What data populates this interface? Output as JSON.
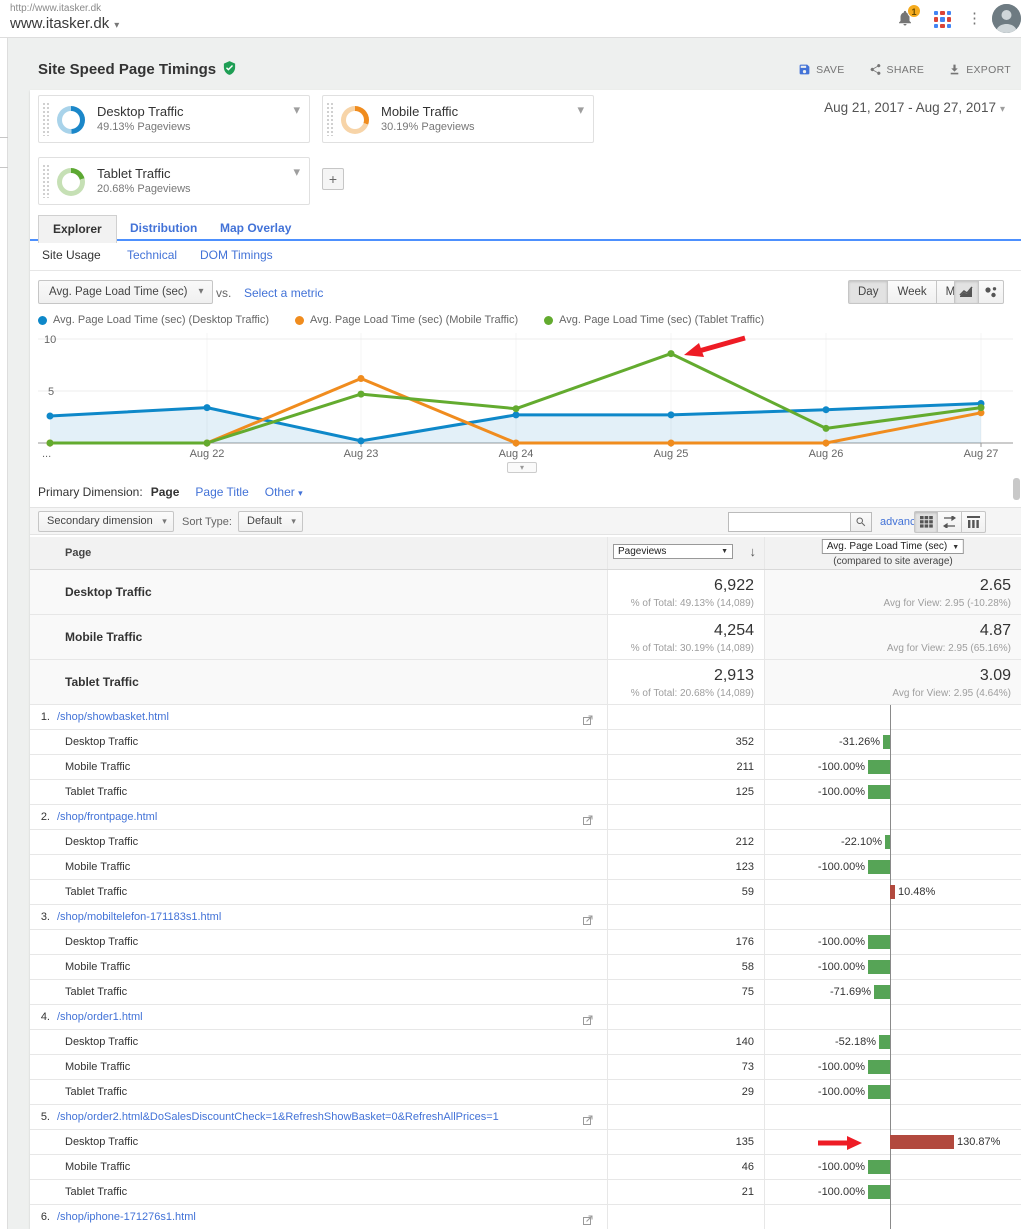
{
  "icons": {
    "caret_down": "▾",
    "select_arrow": "▼",
    "sort_desc": "↓",
    "overflow_menu": "⋮"
  },
  "topbar": {
    "property_url": "http://www.itasker.dk",
    "account_name": "www.itasker.dk",
    "notification_count": "1"
  },
  "report": {
    "title": "Site Speed Page Timings",
    "save_label": "SAVE",
    "share_label": "SHARE",
    "export_label": "EXPORT",
    "date_range": "Aug 21, 2017 - Aug 27, 2017"
  },
  "segments": {
    "cards": [
      {
        "name": "Desktop Traffic",
        "detail": "49.13% Pageviews",
        "pct": 49.13,
        "color": "#1b87c9",
        "light": "#a9d3ea"
      },
      {
        "name": "Mobile Traffic",
        "detail": "30.19% Pageviews",
        "pct": 30.19,
        "color": "#f08c1e",
        "light": "#f7d4a8"
      },
      {
        "name": "Tablet Traffic",
        "detail": "20.68% Pageviews",
        "pct": 20.68,
        "color": "#5ca832",
        "light": "#c6e0b5"
      }
    ],
    "add_label": "+"
  },
  "tabs": [
    {
      "label": "Explorer",
      "active": true
    },
    {
      "label": "Distribution",
      "active": false
    },
    {
      "label": "Map Overlay",
      "active": false
    }
  ],
  "subtabs": [
    {
      "label": "Site Usage",
      "active": true
    },
    {
      "label": "Technical",
      "active": false
    },
    {
      "label": "DOM Timings",
      "active": false
    }
  ],
  "metric_bar": {
    "metric": "Avg. Page Load Time (sec)",
    "vs": "vs.",
    "select_metric": "Select a metric",
    "granularity": [
      {
        "label": "Day",
        "active": true
      },
      {
        "label": "Week",
        "active": false
      },
      {
        "label": "Month",
        "active": false
      }
    ]
  },
  "chart_data": {
    "type": "line",
    "x": [
      "Aug 21",
      "Aug 22",
      "Aug 23",
      "Aug 24",
      "Aug 25",
      "Aug 26",
      "Aug 27"
    ],
    "x_tick_labels": [
      "...",
      "Aug 22",
      "Aug 23",
      "Aug 24",
      "Aug 25",
      "Aug 26",
      "Aug 27"
    ],
    "ylim": [
      0,
      10
    ],
    "yticks": [
      5,
      10
    ],
    "grid": true,
    "series": [
      {
        "name": "Avg. Page Load Time (sec) (Desktop Traffic)",
        "color": "#0e88c9",
        "area_fill": true,
        "values": [
          2.6,
          3.4,
          0.2,
          2.7,
          2.7,
          3.2,
          3.8
        ]
      },
      {
        "name": "Avg. Page Load Time (sec) (Mobile Traffic)",
        "color": "#f08c1e",
        "area_fill": false,
        "values": [
          0,
          0,
          6.2,
          0,
          0,
          0,
          2.9
        ]
      },
      {
        "name": "Avg. Page Load Time (sec) (Tablet Traffic)",
        "color": "#63ab2f",
        "area_fill": false,
        "values": [
          0,
          0,
          4.7,
          3.3,
          8.6,
          1.4,
          3.4
        ]
      }
    ],
    "annotations": [
      {
        "type": "red-arrow",
        "target": "Tablet Traffic peak on Aug 25"
      },
      {
        "type": "red-arrow",
        "target": "Desktop Traffic 130.87% bar in row 5"
      }
    ]
  },
  "primary_dimension": {
    "label": "Primary Dimension:",
    "selected": "Page",
    "options": [
      "Page",
      "Page Title",
      "Other"
    ]
  },
  "toolbar": {
    "secondary_dimension": "Secondary dimension",
    "sort_type_label": "Sort Type:",
    "sort_type": "Default",
    "advanced": "advanced",
    "search_value": ""
  },
  "table": {
    "col_page": "Page",
    "col_pageviews": "Pageviews",
    "col_metric": "Avg. Page Load Time (sec)",
    "col_metric_note": "(compared to site average)",
    "summary": [
      {
        "label": "Desktop Traffic",
        "pageviews": "6,922",
        "pv_note": "% of Total: 49.13% (14,089)",
        "metric": "2.65",
        "metric_note": "Avg for View: 2.95 (-10.28%)"
      },
      {
        "label": "Mobile Traffic",
        "pageviews": "4,254",
        "pv_note": "% of Total: 30.19% (14,089)",
        "metric": "4.87",
        "metric_note": "Avg for View: 2.95 (65.16%)"
      },
      {
        "label": "Tablet Traffic",
        "pageviews": "2,913",
        "pv_note": "% of Total: 20.68% (14,089)",
        "metric": "3.09",
        "metric_note": "Avg for View: 2.95 (4.64%)"
      }
    ],
    "rows": [
      {
        "index": "1.",
        "url": "/shop/showbasket.html",
        "details": [
          {
            "label": "Desktop Traffic",
            "pageviews": "352",
            "pct": -31.26,
            "pct_label": "-31.26%"
          },
          {
            "label": "Mobile Traffic",
            "pageviews": "211",
            "pct": -100,
            "pct_label": "-100.00%"
          },
          {
            "label": "Tablet Traffic",
            "pageviews": "125",
            "pct": -100,
            "pct_label": "-100.00%"
          }
        ]
      },
      {
        "index": "2.",
        "url": "/shop/frontpage.html",
        "details": [
          {
            "label": "Desktop Traffic",
            "pageviews": "212",
            "pct": -22.1,
            "pct_label": "-22.10%"
          },
          {
            "label": "Mobile Traffic",
            "pageviews": "123",
            "pct": -100,
            "pct_label": "-100.00%"
          },
          {
            "label": "Tablet Traffic",
            "pageviews": "59",
            "pct": 10.48,
            "pct_label": "10.48%"
          }
        ]
      },
      {
        "index": "3.",
        "url": "/shop/mobiltelefon-171183s1.html",
        "details": [
          {
            "label": "Desktop Traffic",
            "pageviews": "176",
            "pct": -100,
            "pct_label": "-100.00%"
          },
          {
            "label": "Mobile Traffic",
            "pageviews": "58",
            "pct": -100,
            "pct_label": "-100.00%"
          },
          {
            "label": "Tablet Traffic",
            "pageviews": "75",
            "pct": -71.69,
            "pct_label": "-71.69%"
          }
        ]
      },
      {
        "index": "4.",
        "url": "/shop/order1.html",
        "details": [
          {
            "label": "Desktop Traffic",
            "pageviews": "140",
            "pct": -52.18,
            "pct_label": "-52.18%"
          },
          {
            "label": "Mobile Traffic",
            "pageviews": "73",
            "pct": -100,
            "pct_label": "-100.00%"
          },
          {
            "label": "Tablet Traffic",
            "pageviews": "29",
            "pct": -100,
            "pct_label": "-100.00%"
          }
        ]
      },
      {
        "index": "5.",
        "url": "/shop/order2.html&DoSalesDiscountCheck=1&RefreshShowBasket=0&RefreshAllPrices=1",
        "details": [
          {
            "label": "Desktop Traffic",
            "pageviews": "135",
            "pct": 130.87,
            "pct_label": "130.87%",
            "arrow": true
          },
          {
            "label": "Mobile Traffic",
            "pageviews": "46",
            "pct": -100,
            "pct_label": "-100.00%"
          },
          {
            "label": "Tablet Traffic",
            "pageviews": "21",
            "pct": -100,
            "pct_label": "-100.00%"
          }
        ]
      },
      {
        "index": "6.",
        "url": "/shop/iphone-171276s1.html",
        "details": []
      }
    ]
  }
}
